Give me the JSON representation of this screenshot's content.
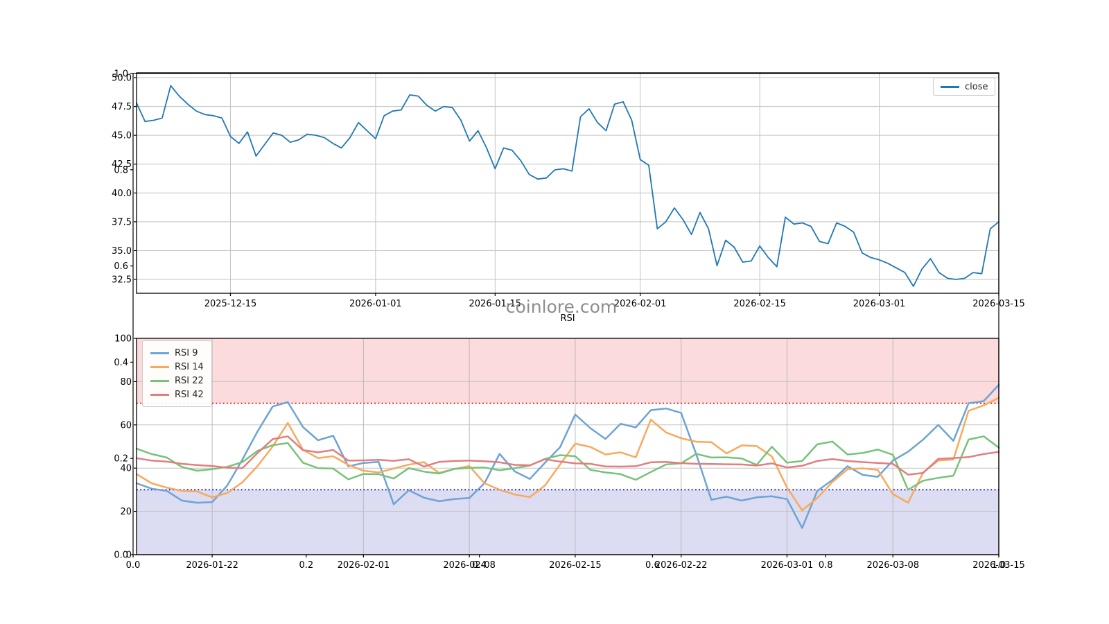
{
  "watermark": "coinlore.com",
  "colors": {
    "close_line": "#1f77b4",
    "rsi9": "#6da3d5",
    "rsi14": "#f8a95c",
    "rsi22": "#77c279",
    "rsi42": "#e27e7e",
    "overbought_band": "#fbdbdb",
    "oversold_band": "#dcdcf2",
    "overbought_line": "#d40000",
    "oversold_line": "#0000cd",
    "grid": "#c3c3c3",
    "spine": "#000000",
    "watermark_text": "#8d8d8d"
  },
  "overlay_axis": {
    "x_ticks": [
      "0.0",
      "0.2",
      "0.4",
      "0.6",
      "0.8",
      "1.0"
    ],
    "y_ticks": [
      "0.0",
      "0.2",
      "0.4",
      "0.6",
      "0.8",
      "1.0"
    ]
  },
  "chart_data": [
    {
      "type": "line",
      "title": "",
      "xlabel": "",
      "ylabel": "",
      "legend_position": "upper right",
      "grid": true,
      "ylim": [
        31.3,
        50.42
      ],
      "y_ticks": [
        "32.5",
        "35.0",
        "37.5",
        "40.0",
        "42.5",
        "45.0",
        "47.5",
        "50.0"
      ],
      "x_start_date": "2025-12-04",
      "x_tick_labels": [
        "2025-12-15",
        "2026-01-01",
        "2026-01-15",
        "2026-02-01",
        "2026-02-15",
        "2026-03-01",
        "2026-03-15"
      ],
      "x_tick_day_index": [
        11,
        28,
        42,
        59,
        73,
        87,
        101
      ],
      "series": [
        {
          "name": "close",
          "color": "#1f77b4",
          "values": [
            47.8,
            46.2,
            46.3,
            46.5,
            49.3,
            48.4,
            47.7,
            47.1,
            46.8,
            46.7,
            46.5,
            44.9,
            44.3,
            45.3,
            43.2,
            44.2,
            45.2,
            45.0,
            44.4,
            44.6,
            45.1,
            45.0,
            44.8,
            44.3,
            43.9,
            44.8,
            46.1,
            45.4,
            44.7,
            46.7,
            47.1,
            47.2,
            48.5,
            48.4,
            47.6,
            47.1,
            47.5,
            47.4,
            46.3,
            44.5,
            45.4,
            43.9,
            42.1,
            43.9,
            43.7,
            42.8,
            41.6,
            41.2,
            41.3,
            42.0,
            42.1,
            41.9,
            46.6,
            47.3,
            46.1,
            45.4,
            47.7,
            47.9,
            46.3,
            42.9,
            42.4,
            36.9,
            37.5,
            38.7,
            37.7,
            36.4,
            38.3,
            36.9,
            33.7,
            35.9,
            35.3,
            34.0,
            34.1,
            35.4,
            34.4,
            33.6,
            37.9,
            37.3,
            37.4,
            37.1,
            35.8,
            35.6,
            37.4,
            37.1,
            36.6,
            34.8,
            34.4,
            34.2,
            33.9,
            33.5,
            33.1,
            31.9,
            33.4,
            34.3,
            33.1,
            32.6,
            32.5,
            32.6,
            33.1,
            33.0,
            36.9,
            37.5
          ]
        }
      ]
    },
    {
      "type": "line",
      "title": "RSI",
      "xlabel": "",
      "ylabel": "",
      "legend_position": "upper left",
      "grid": true,
      "ylim": [
        0,
        100
      ],
      "y_ticks": [
        "0",
        "20",
        "40",
        "60",
        "80",
        "100"
      ],
      "grid_y_values": [
        20,
        40,
        60,
        80
      ],
      "x_start_date": "2026-01-17",
      "x_tick_labels": [
        "2026-01-22",
        "2026-02-01",
        "2026-02-08",
        "2026-02-15",
        "2026-02-22",
        "2026-03-01",
        "2026-03-08",
        "2026-03-15"
      ],
      "x_tick_day_index": [
        5,
        15,
        22,
        29,
        36,
        43,
        50,
        57
      ],
      "bands": [
        {
          "name": "overbought-band",
          "from": 70,
          "to": 100,
          "color": "#fbdbdb"
        },
        {
          "name": "oversold-band",
          "from": 0,
          "to": 30,
          "color": "#dcdcf2"
        }
      ],
      "threshold_lines": [
        {
          "name": "overbought-line",
          "value": 70,
          "color": "#d40000"
        },
        {
          "name": "oversold-line",
          "value": 30,
          "color": "#0000cd"
        }
      ],
      "series": [
        {
          "name": "RSI 9",
          "color": "#6da3d5",
          "values": [
            33.0,
            30.5,
            29.5,
            25.0,
            24.0,
            24.3,
            32.0,
            44.0,
            57.0,
            68.5,
            70.5,
            59.0,
            52.9,
            55.0,
            40.8,
            42.4,
            42.9,
            23.3,
            29.8,
            26.3,
            24.7,
            25.7,
            26.2,
            33.0,
            46.6,
            38.5,
            35.0,
            42.5,
            49.7,
            64.8,
            58.5,
            53.5,
            60.5,
            58.8,
            66.8,
            67.6,
            65.5,
            46.4,
            25.4,
            26.8,
            25.0,
            26.5,
            27.0,
            25.7,
            12.3,
            29.5,
            34.5,
            40.9,
            36.9,
            36.0,
            43.5,
            47.6,
            53.2,
            60.0,
            52.6,
            70.0,
            71.0,
            78.5
          ]
        },
        {
          "name": "RSI 14",
          "color": "#f8a95c",
          "values": [
            37.2,
            33.0,
            31.0,
            29.5,
            29.2,
            26.5,
            28.5,
            33.5,
            41.0,
            50.0,
            60.9,
            48.5,
            44.6,
            45.5,
            41.5,
            38.8,
            38.0,
            39.8,
            41.6,
            42.8,
            37.8,
            39.6,
            41.0,
            33.0,
            30.0,
            27.8,
            26.6,
            32.0,
            41.7,
            51.3,
            49.8,
            46.3,
            47.3,
            45.0,
            62.4,
            56.5,
            53.8,
            52.2,
            52.0,
            46.8,
            50.5,
            50.2,
            45.4,
            31.0,
            20.5,
            26.2,
            33.6,
            39.5,
            39.9,
            39.2,
            28.0,
            24.0,
            38.0,
            43.5,
            44.0,
            66.5,
            69.0,
            72.5
          ]
        },
        {
          "name": "RSI 22",
          "color": "#77c279",
          "values": [
            49.0,
            46.5,
            44.9,
            40.5,
            38.8,
            39.5,
            40.6,
            42.8,
            48.0,
            50.6,
            51.6,
            42.5,
            40.0,
            39.8,
            34.8,
            37.3,
            37.2,
            35.2,
            40.0,
            38.4,
            37.5,
            39.6,
            40.1,
            40.3,
            39.0,
            40.0,
            41.2,
            44.3,
            46.0,
            45.5,
            39.2,
            38.0,
            37.2,
            34.6,
            38.2,
            41.7,
            42.2,
            46.6,
            44.9,
            45.0,
            44.5,
            41.5,
            49.9,
            42.5,
            43.3,
            51.0,
            52.3,
            46.3,
            47.0,
            48.6,
            46.2,
            30.0,
            34.2,
            35.5,
            36.5,
            53.2,
            54.7,
            49.5
          ]
        },
        {
          "name": "RSI 42",
          "color": "#e27e7e",
          "values": [
            44.6,
            43.5,
            43.0,
            42.0,
            41.4,
            41.0,
            40.2,
            40.0,
            47.0,
            53.4,
            54.7,
            48.3,
            47.3,
            48.4,
            43.5,
            43.6,
            43.8,
            43.4,
            44.1,
            40.7,
            42.9,
            43.3,
            43.5,
            43.2,
            42.7,
            41.5,
            41.3,
            44.1,
            43.0,
            42.2,
            42.0,
            40.8,
            40.7,
            40.9,
            42.7,
            42.9,
            42.3,
            42.0,
            41.9,
            41.8,
            41.7,
            41.2,
            42.2,
            40.3,
            41.1,
            43.3,
            44.2,
            43.3,
            42.8,
            42.4,
            42.0,
            37.0,
            37.8,
            44.3,
            44.6,
            45.1,
            46.5,
            47.5
          ]
        }
      ]
    }
  ]
}
